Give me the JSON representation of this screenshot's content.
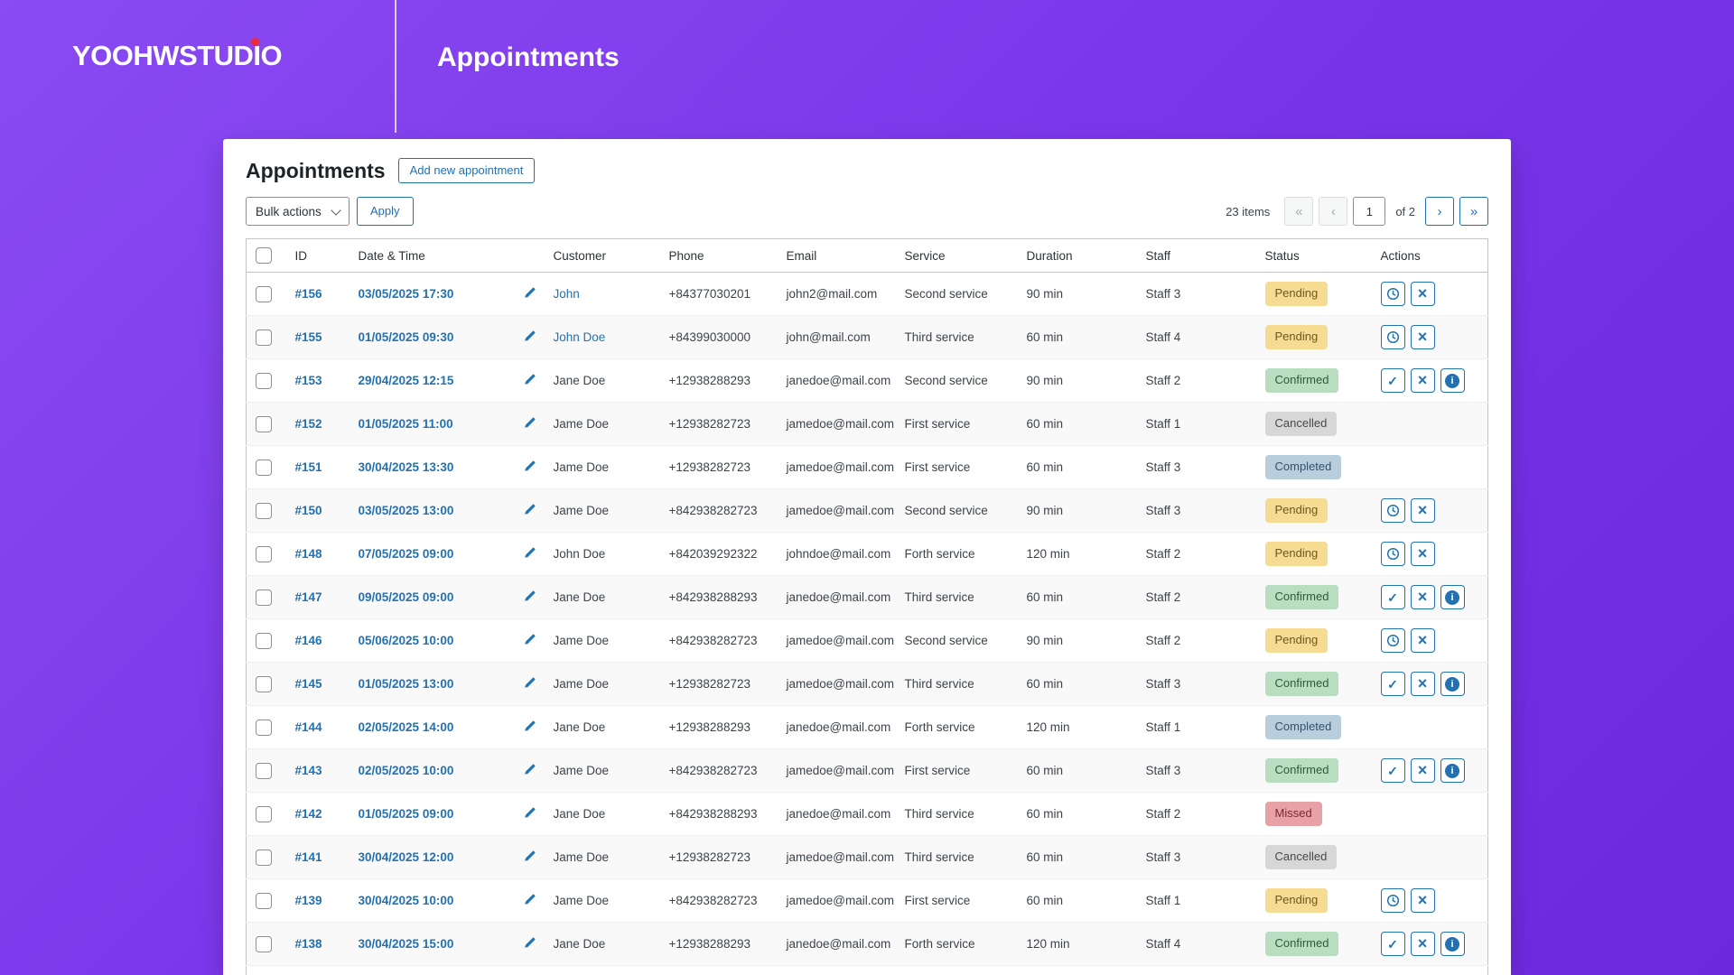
{
  "brand": {
    "logo": "YOOHWSTUDIO",
    "page_title": "Appointments"
  },
  "panel": {
    "heading": "Appointments",
    "add_button": "Add new appointment",
    "bulk_actions_label": "Bulk actions",
    "apply_label": "Apply",
    "items_count": "23 items",
    "pagination": {
      "first": "«",
      "prev": "‹",
      "current": "1",
      "of_label": "of 2",
      "next": "›",
      "last": "»"
    }
  },
  "table": {
    "headers": [
      "ID",
      "Date & Time",
      "Customer",
      "Phone",
      "Email",
      "Service",
      "Duration",
      "Staff",
      "Status",
      "Actions"
    ],
    "rows": [
      {
        "id": "#156",
        "date": "03/05/2025 17:30",
        "customer": "John",
        "customer_link": true,
        "phone": "+84377030201",
        "email": "john2@mail.com",
        "service": "Second service",
        "duration": "90 min",
        "staff": "Staff 3",
        "status": "Pending",
        "status_type": "pending",
        "actions": [
          "clock",
          "close"
        ]
      },
      {
        "id": "#155",
        "date": "01/05/2025 09:30",
        "customer": "John Doe",
        "customer_link": true,
        "phone": "+84399030000",
        "email": "john@mail.com",
        "service": "Third service",
        "duration": "60 min",
        "staff": "Staff 4",
        "status": "Pending",
        "status_type": "pending",
        "actions": [
          "clock",
          "close"
        ]
      },
      {
        "id": "#153",
        "date": "29/04/2025 12:15",
        "customer": "Jane Doe",
        "customer_link": false,
        "phone": "+12938288293",
        "email": "janedoe@mail.com",
        "service": "Second service",
        "duration": "90 min",
        "staff": "Staff 2",
        "status": "Confirmed",
        "status_type": "confirmed",
        "actions": [
          "check",
          "close",
          "info"
        ]
      },
      {
        "id": "#152",
        "date": "01/05/2025 11:00",
        "customer": "Jame Doe",
        "customer_link": false,
        "phone": "+12938282723",
        "email": "jamedoe@mail.com",
        "service": "First service",
        "duration": "60 min",
        "staff": "Staff 1",
        "status": "Cancelled",
        "status_type": "cancelled",
        "actions": []
      },
      {
        "id": "#151",
        "date": "30/04/2025 13:30",
        "customer": "Jame Doe",
        "customer_link": false,
        "phone": "+12938282723",
        "email": "jamedoe@mail.com",
        "service": "First service",
        "duration": "60 min",
        "staff": "Staff 3",
        "status": "Completed",
        "status_type": "completed",
        "actions": []
      },
      {
        "id": "#150",
        "date": "03/05/2025 13:00",
        "customer": "Jame Doe",
        "customer_link": false,
        "phone": "+842938282723",
        "email": "jamedoe@mail.com",
        "service": "Second service",
        "duration": "90 min",
        "staff": "Staff 3",
        "status": "Pending",
        "status_type": "pending",
        "actions": [
          "clock",
          "close"
        ]
      },
      {
        "id": "#148",
        "date": "07/05/2025 09:00",
        "customer": "John Doe",
        "customer_link": false,
        "phone": "+842039292322",
        "email": "johndoe@mail.com",
        "service": "Forth service",
        "duration": "120 min",
        "staff": "Staff 2",
        "status": "Pending",
        "status_type": "pending",
        "actions": [
          "clock",
          "close"
        ]
      },
      {
        "id": "#147",
        "date": "09/05/2025 09:00",
        "customer": "Jane Doe",
        "customer_link": false,
        "phone": "+842938288293",
        "email": "janedoe@mail.com",
        "service": "Third service",
        "duration": "60 min",
        "staff": "Staff 2",
        "status": "Confirmed",
        "status_type": "confirmed",
        "actions": [
          "check",
          "close",
          "info"
        ]
      },
      {
        "id": "#146",
        "date": "05/06/2025 10:00",
        "customer": "Jame Doe",
        "customer_link": false,
        "phone": "+842938282723",
        "email": "jamedoe@mail.com",
        "service": "Second service",
        "duration": "90 min",
        "staff": "Staff 2",
        "status": "Pending",
        "status_type": "pending",
        "actions": [
          "clock",
          "close"
        ]
      },
      {
        "id": "#145",
        "date": "01/05/2025 13:00",
        "customer": "Jame Doe",
        "customer_link": false,
        "phone": "+12938282723",
        "email": "jamedoe@mail.com",
        "service": "Third service",
        "duration": "60 min",
        "staff": "Staff 3",
        "status": "Confirmed",
        "status_type": "confirmed",
        "actions": [
          "check",
          "close",
          "info"
        ]
      },
      {
        "id": "#144",
        "date": "02/05/2025 14:00",
        "customer": "Jane Doe",
        "customer_link": false,
        "phone": "+12938288293",
        "email": "janedoe@mail.com",
        "service": "Forth service",
        "duration": "120 min",
        "staff": "Staff 1",
        "status": "Completed",
        "status_type": "completed",
        "actions": []
      },
      {
        "id": "#143",
        "date": "02/05/2025 10:00",
        "customer": "Jame Doe",
        "customer_link": false,
        "phone": "+842938282723",
        "email": "jamedoe@mail.com",
        "service": "First service",
        "duration": "60 min",
        "staff": "Staff 3",
        "status": "Confirmed",
        "status_type": "confirmed",
        "actions": [
          "check",
          "close",
          "info"
        ]
      },
      {
        "id": "#142",
        "date": "01/05/2025 09:00",
        "customer": "Jane Doe",
        "customer_link": false,
        "phone": "+842938288293",
        "email": "janedoe@mail.com",
        "service": "Third service",
        "duration": "60 min",
        "staff": "Staff 2",
        "status": "Missed",
        "status_type": "missed",
        "actions": []
      },
      {
        "id": "#141",
        "date": "30/04/2025 12:00",
        "customer": "Jame Doe",
        "customer_link": false,
        "phone": "+12938282723",
        "email": "jamedoe@mail.com",
        "service": "Third service",
        "duration": "60 min",
        "staff": "Staff 3",
        "status": "Cancelled",
        "status_type": "cancelled",
        "actions": []
      },
      {
        "id": "#139",
        "date": "30/04/2025 10:00",
        "customer": "Jame Doe",
        "customer_link": false,
        "phone": "+842938282723",
        "email": "jamedoe@mail.com",
        "service": "First service",
        "duration": "60 min",
        "staff": "Staff 1",
        "status": "Pending",
        "status_type": "pending",
        "actions": [
          "clock",
          "close"
        ]
      },
      {
        "id": "#138",
        "date": "30/04/2025 15:00",
        "customer": "Jane Doe",
        "customer_link": false,
        "phone": "+12938288293",
        "email": "janedoe@mail.com",
        "service": "Forth service",
        "duration": "120 min",
        "staff": "Staff 4",
        "status": "Confirmed",
        "status_type": "confirmed",
        "actions": [
          "check",
          "close",
          "info"
        ]
      }
    ],
    "partial_row": {
      "status_type": "missed"
    }
  }
}
